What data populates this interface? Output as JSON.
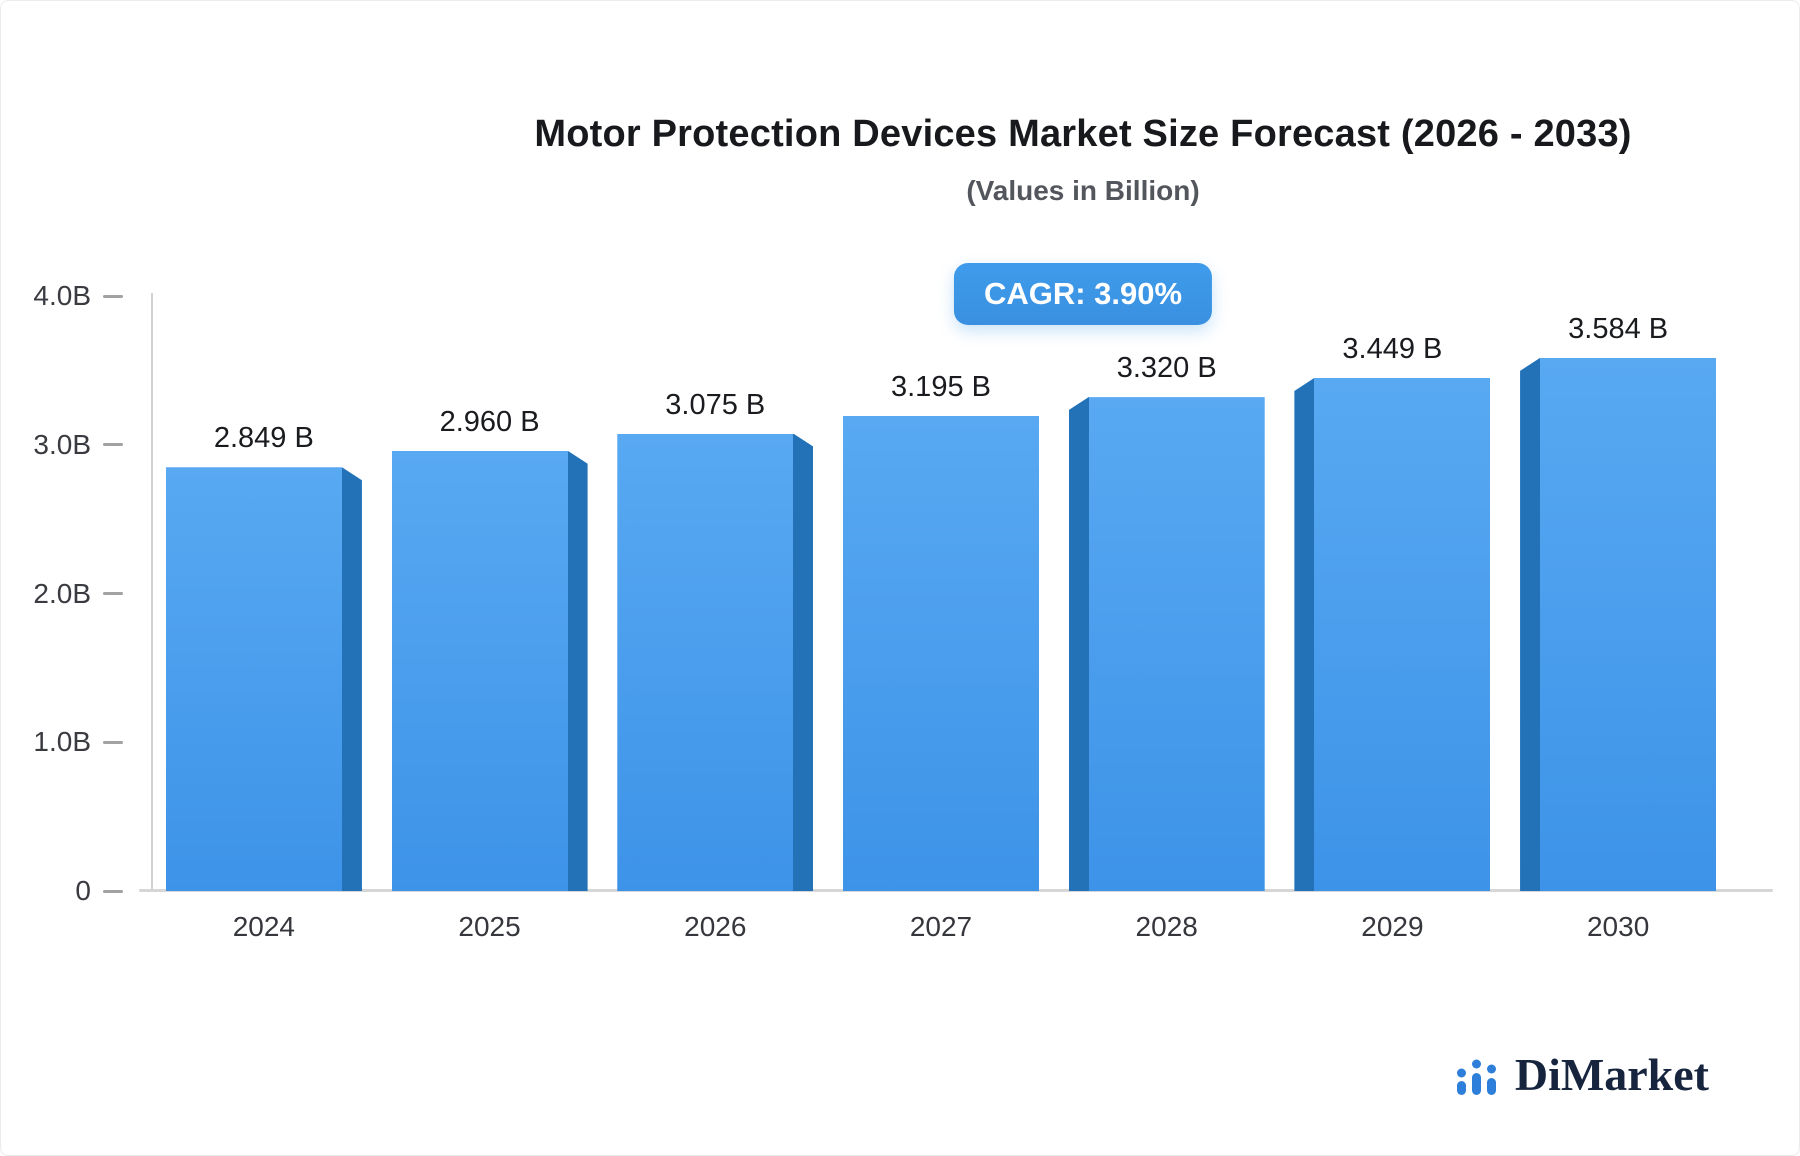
{
  "chart_data": {
    "type": "bar",
    "title": "Motor Protection Devices Market Size Forecast (2026 - 2033)",
    "subtitle": "(Values in Billion)",
    "badge_label": "CAGR: 3.90%",
    "categories": [
      "2024",
      "2025",
      "2026",
      "2027",
      "2028",
      "2029",
      "2030"
    ],
    "values": [
      2.849,
      2.96,
      3.075,
      3.195,
      3.32,
      3.449,
      3.584
    ],
    "value_labels": [
      "2.849 B",
      "2.960 B",
      "3.075 B",
      "3.195 B",
      "3.320 B",
      "3.449 B",
      "3.584 B"
    ],
    "y_ticks": [
      {
        "label": "4.0B",
        "value": 4.0
      },
      {
        "label": "3.0B",
        "value": 3.0
      },
      {
        "label": "2.0B",
        "value": 2.0
      },
      {
        "label": "1.0B",
        "value": 1.0
      },
      {
        "label": "0",
        "value": 0
      }
    ],
    "ylim": [
      0,
      4.0
    ],
    "grid": "off",
    "legend": "none",
    "colors": {
      "bar_top": "#58a9f2",
      "bar_bottom": "#3d93e8",
      "bar_side": "#2372b7",
      "badge_bg": "#3f9beb",
      "badge_text": "#ffffff"
    }
  },
  "logo": {
    "name": "DiMarket",
    "icon": "bar-chart-icon",
    "icon_color": "#2e7fd9",
    "text_color": "#16243e"
  }
}
